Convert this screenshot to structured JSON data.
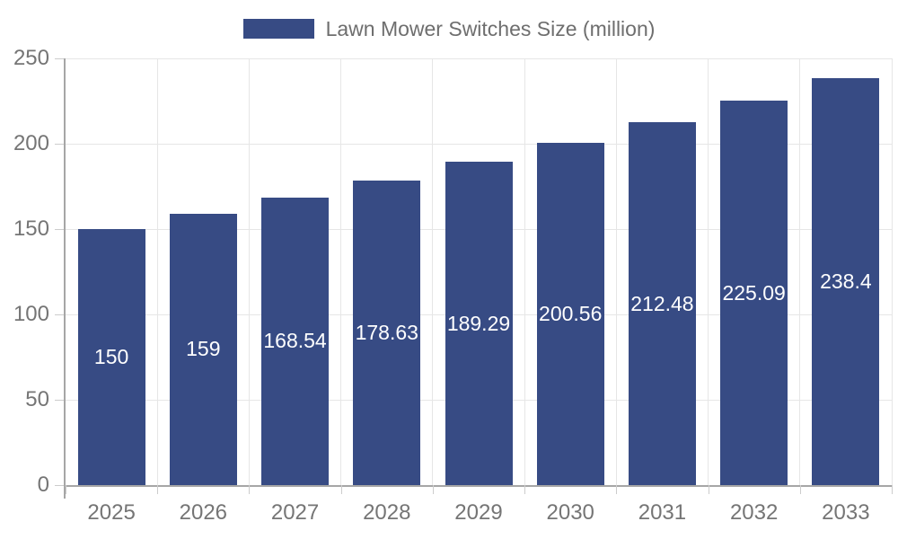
{
  "legend": {
    "label": "Lawn Mower Switches Size (million)"
  },
  "chart_data": {
    "type": "bar",
    "title": "Lawn Mower Switches Size (million)",
    "categories": [
      "2025",
      "2026",
      "2027",
      "2028",
      "2029",
      "2030",
      "2031",
      "2032",
      "2033"
    ],
    "values": [
      150,
      159,
      168.54,
      178.63,
      189.29,
      200.56,
      212.48,
      225.09,
      238.4
    ],
    "value_labels": [
      "150",
      "159",
      "168.54",
      "178.63",
      "189.29",
      "200.56",
      "212.48",
      "225.09",
      "238.4"
    ],
    "xlabel": "",
    "ylabel": "",
    "ylim": [
      0,
      250
    ],
    "yticks": [
      0,
      50,
      100,
      150,
      200,
      250
    ],
    "ytick_labels": [
      "0",
      "50",
      "100",
      "150",
      "200",
      "250"
    ],
    "grid": true,
    "legend_position": "top-center",
    "colors": {
      "bar": "#374B84",
      "bar_value_label": "#ffffff",
      "gridline": "#e6e6e6",
      "axis_line": "#a6a6a6",
      "tick_mark": "#cccccc",
      "tick_label": "#757575",
      "legend_text": "#6e6e6e",
      "background": "#ffffff"
    }
  }
}
